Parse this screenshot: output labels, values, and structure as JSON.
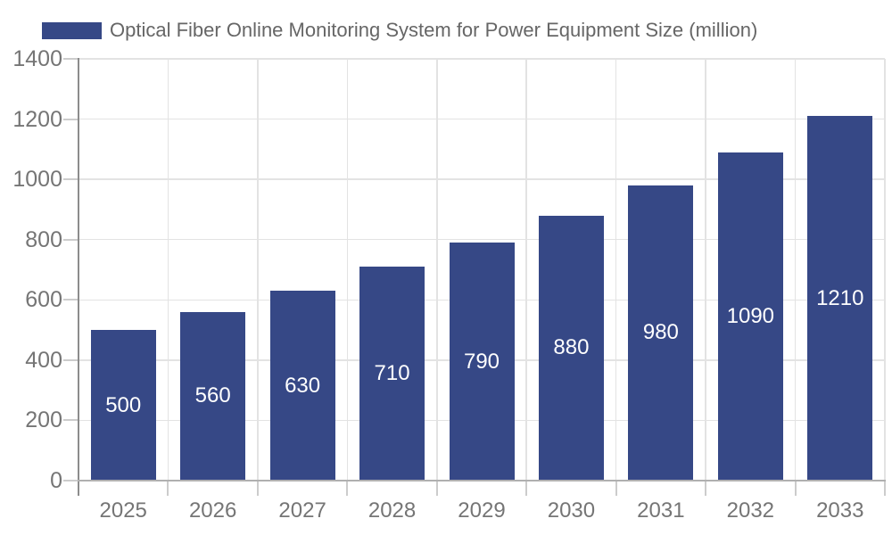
{
  "legend": {
    "label": "Optical Fiber Online Monitoring System for Power Equipment Size (million)"
  },
  "chart_data": {
    "type": "bar",
    "title": "Optical Fiber Online Monitoring System for Power Equipment Size (million)",
    "series_name": "Optical Fiber Online Monitoring System for Power Equipment Size (million)",
    "categories": [
      "2025",
      "2026",
      "2027",
      "2028",
      "2029",
      "2030",
      "2031",
      "2032",
      "2033"
    ],
    "values": [
      500,
      560,
      630,
      710,
      790,
      880,
      980,
      1090,
      1210
    ],
    "xlabel": "",
    "ylabel": "",
    "ylim": [
      0,
      1400
    ],
    "yticks": [
      0,
      200,
      400,
      600,
      800,
      1000,
      1200,
      1400
    ],
    "grid": true,
    "legend_position": "top-left",
    "colors": {
      "bar": "#364886",
      "bar_label": "#ffffff",
      "axis_text": "#757575",
      "legend_text": "#666666",
      "grid_line": "#e3e3e3",
      "y_axis_line": "#8c8c8c",
      "x_axis_line": "#b0b0b0",
      "tick": "#cccccc",
      "background": "#ffffff"
    }
  }
}
